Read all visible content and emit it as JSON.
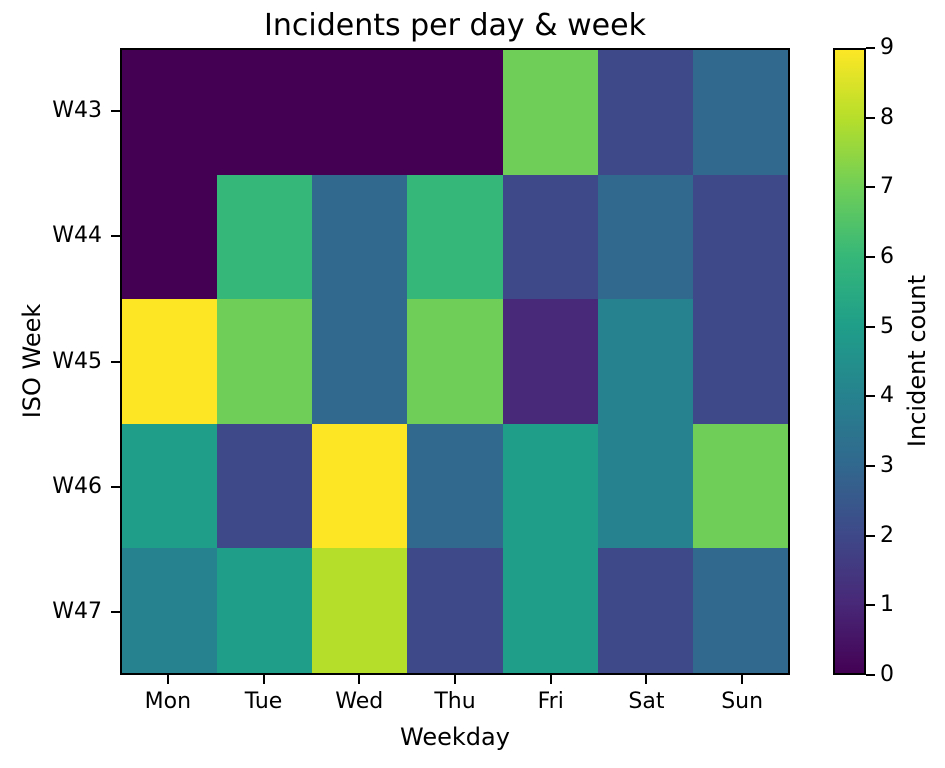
{
  "chart_data": {
    "type": "heatmap",
    "title": "Incidents per day & week",
    "xlabel": "Weekday",
    "ylabel": "ISO Week",
    "categories_x": [
      "Mon",
      "Tue",
      "Wed",
      "Thu",
      "Fri",
      "Sat",
      "Sun"
    ],
    "categories_y": [
      "W43",
      "W44",
      "W45",
      "W46",
      "W47"
    ],
    "values": [
      [
        0,
        0,
        0,
        0,
        7,
        2,
        3
      ],
      [
        0,
        6,
        3,
        6,
        2,
        3,
        2
      ],
      [
        9,
        7,
        3,
        7,
        1,
        4,
        2
      ],
      [
        5,
        2,
        9,
        3,
        5,
        4,
        7
      ],
      [
        4,
        5,
        8,
        2,
        5,
        2,
        3
      ]
    ],
    "vmin": 0,
    "vmax": 9,
    "colormap": "viridis",
    "colormap_stops": {
      "0": "#440154",
      "1": "#482878",
      "2": "#3e4989",
      "3": "#31688e",
      "4": "#26828e",
      "5": "#1f9e89",
      "6": "#35b779",
      "7": "#6ece58",
      "8": "#b5de2b",
      "9": "#fde725"
    },
    "colorbar": {
      "label": "Incident count",
      "ticks": [
        0,
        1,
        2,
        3,
        4,
        5,
        6,
        7,
        8,
        9
      ]
    },
    "grid": false,
    "spine_color": "#000000",
    "background_color": "#ffffff"
  }
}
